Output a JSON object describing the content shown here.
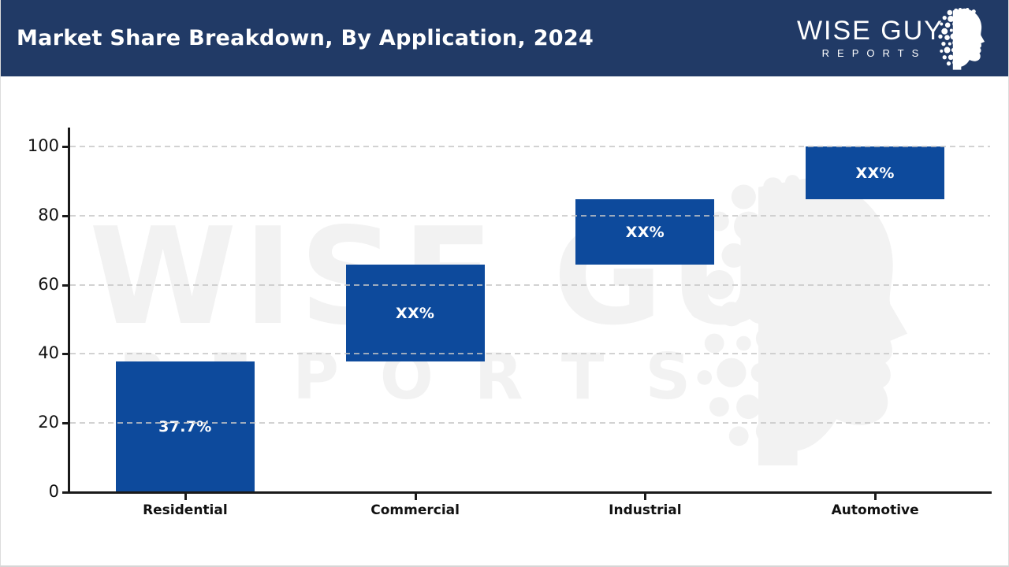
{
  "header": {
    "title": "Market Share Breakdown, By Application, 2024",
    "logo": {
      "line1": "WISE GUY",
      "line2": "REPORTS"
    }
  },
  "watermark": {
    "line1": "WISE GUY",
    "line2": "REPORTS"
  },
  "colors": {
    "header_bg": "#213a66",
    "bar": "#0d4a9c",
    "gridline": "#d2d2d2",
    "axis": "#1a1a1a",
    "bar_label_text": "#ffffff",
    "tick_text": "#111111",
    "watermark": "#f2f2f2"
  },
  "chart_data": {
    "type": "bar",
    "subtype": "waterfall-floating",
    "title": "Market Share Breakdown, By Application, 2024",
    "categories": [
      "Residential",
      "Commercial",
      "Industrial",
      "Automotive"
    ],
    "segments": [
      {
        "category": "Residential",
        "start": 0,
        "end": 37.7,
        "label": "37.7%"
      },
      {
        "category": "Commercial",
        "start": 37.7,
        "end": 65.8,
        "label": "XX%"
      },
      {
        "category": "Industrial",
        "start": 65.8,
        "end": 84.7,
        "label": "XX%"
      },
      {
        "category": "Automotive",
        "start": 84.7,
        "end": 100,
        "label": "XX%"
      }
    ],
    "xlabel": "",
    "ylabel": "",
    "ylim": [
      0,
      100
    ],
    "yticks": [
      0,
      20,
      40,
      60,
      80,
      100
    ],
    "grid": "horizontal-dashed",
    "legend": "none",
    "bar_color": "#0d4a9c"
  }
}
